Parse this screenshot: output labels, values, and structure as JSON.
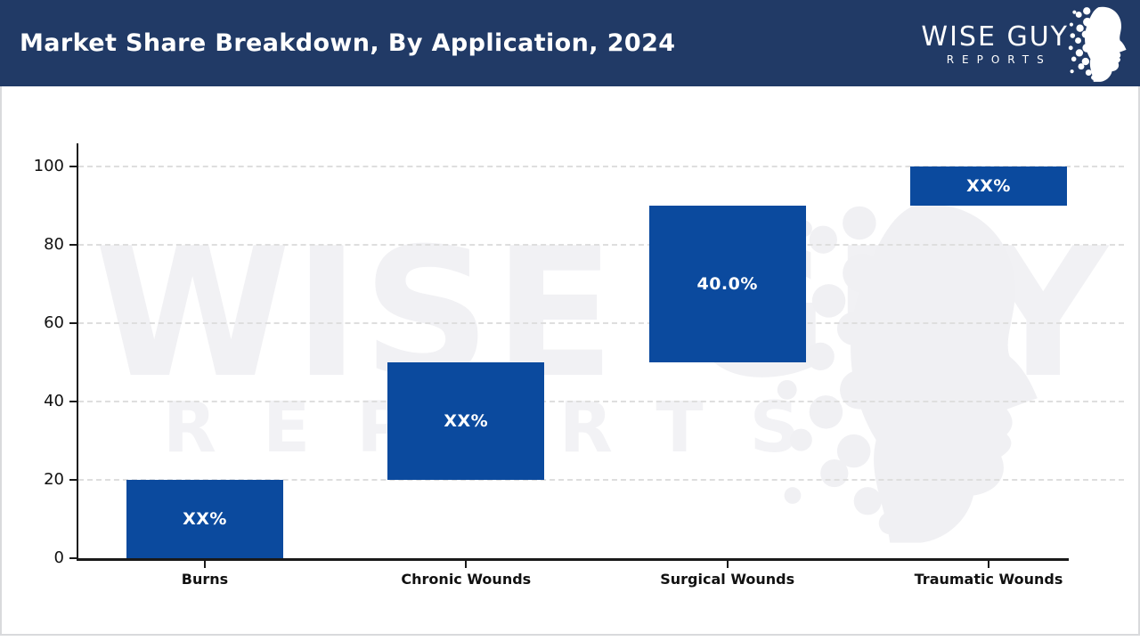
{
  "header": {
    "title": "Market Share Breakdown, By Application, 2024",
    "logo": {
      "primary": "WISE GUY",
      "secondary": "REPORTS"
    }
  },
  "watermark": {
    "primary": "WISE GUY",
    "secondary": "REPORTS"
  },
  "colors": {
    "header_bg": "#213a66",
    "bar": "#0b4a9e",
    "bar_label": "#ffffff",
    "grid": "#dedede",
    "axis": "#1a1a1a",
    "watermark": "#f1f1f4"
  },
  "chart_data": {
    "type": "bar",
    "subtype": "waterfall",
    "title": "Market Share Breakdown, By Application, 2024",
    "categories": [
      "Burns",
      "Chronic Wounds",
      "Surgical Wounds",
      "Traumatic Wounds"
    ],
    "series": [
      {
        "name": "Market Share",
        "segments": [
          {
            "category": "Burns",
            "start": 0,
            "end": 20,
            "label": "XX%"
          },
          {
            "category": "Chronic Wounds",
            "start": 20,
            "end": 50,
            "label": "XX%"
          },
          {
            "category": "Surgical Wounds",
            "start": 50,
            "end": 90,
            "label": "40.0%"
          },
          {
            "category": "Traumatic Wounds",
            "start": 90,
            "end": 100,
            "label": "XX%"
          }
        ]
      }
    ],
    "xlabel": "",
    "ylabel": "",
    "yticks": [
      0,
      20,
      40,
      60,
      80,
      100
    ],
    "ylim": [
      0,
      105
    ],
    "grid": "horizontal-dashed",
    "legend": "none"
  }
}
